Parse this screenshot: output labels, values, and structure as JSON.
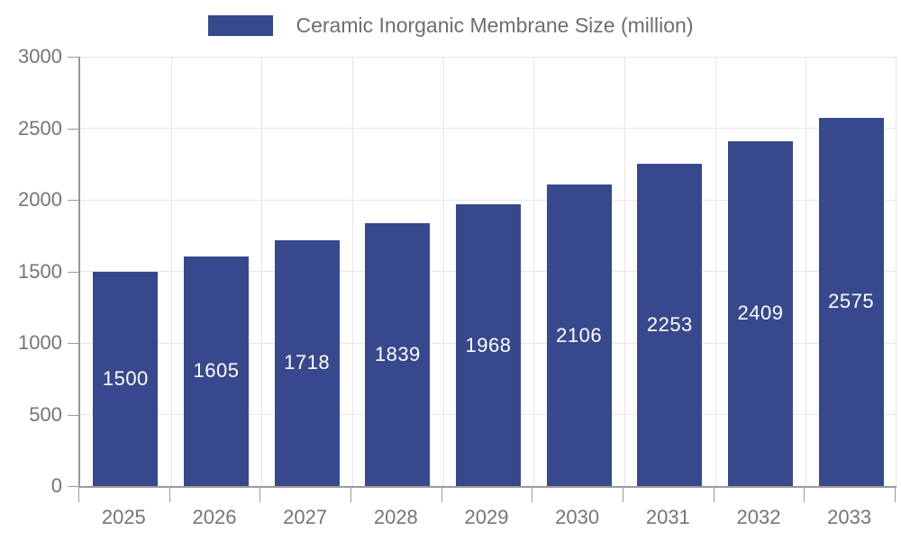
{
  "chart_data": {
    "type": "bar",
    "title": "Ceramic Inorganic Membrane Size (million)",
    "legend_entries": [
      "Ceramic Inorganic Membrane Size (million)"
    ],
    "legend_position": "top-center",
    "categories": [
      "2025",
      "2026",
      "2027",
      "2028",
      "2029",
      "2030",
      "2031",
      "2032",
      "2033"
    ],
    "values": [
      1500,
      1605,
      1718,
      1839,
      1968,
      2106,
      2253,
      2409,
      2575
    ],
    "xlabel": "",
    "ylabel": "",
    "ylim": [
      0,
      3000
    ],
    "ytick_interval": 500,
    "yticks": [
      0,
      500,
      1000,
      1500,
      2000,
      2500,
      3000
    ],
    "grid": true,
    "value_labels": "inside-middle",
    "colors": {
      "bar": "#38488c",
      "bar_value_text": "#ffffff",
      "axis_line": "#999999",
      "gridline": "#e6e6e6",
      "tick_text": "#757575",
      "legend_text": "#6e6e6e",
      "background": "#ffffff"
    }
  }
}
